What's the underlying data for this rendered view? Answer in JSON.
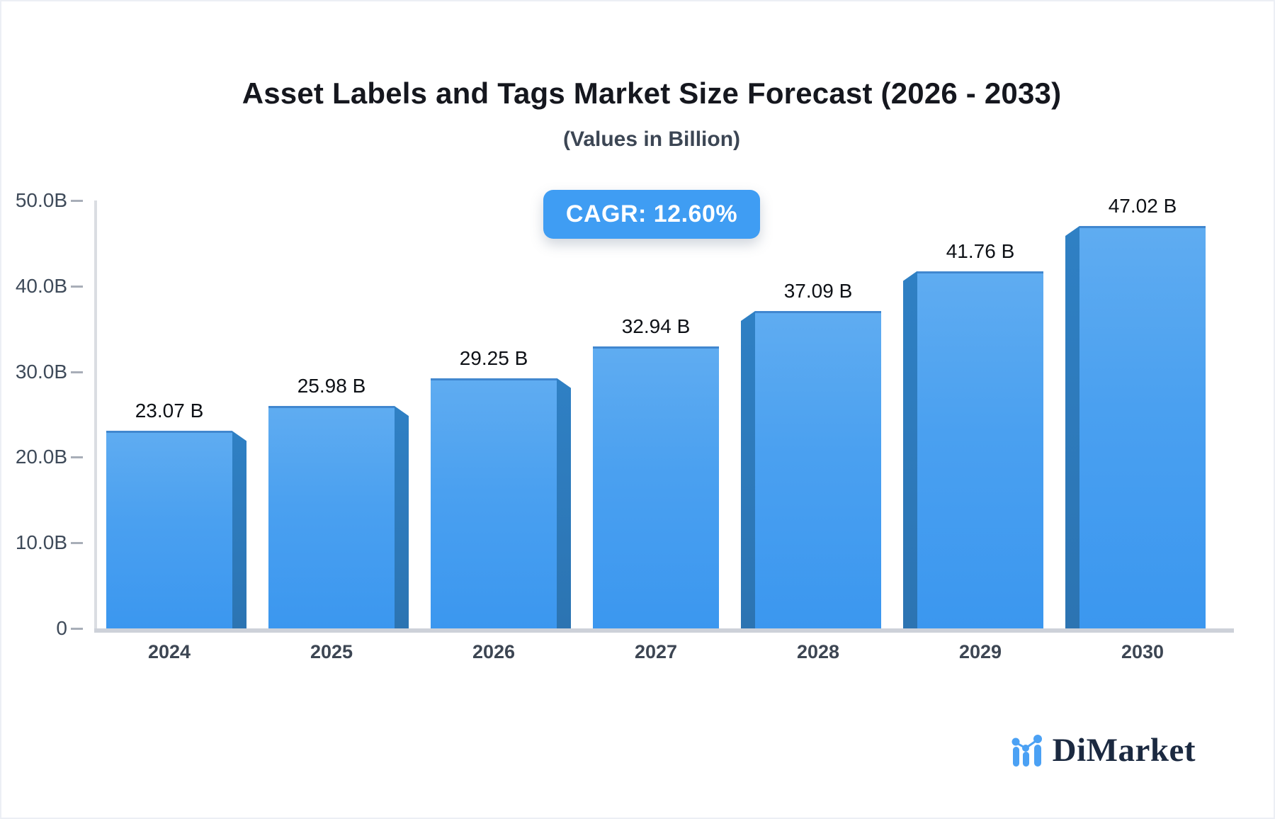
{
  "header": {
    "title": "Asset Labels and Tags Market Size Forecast (2026 - 2033)",
    "subtitle": "(Values in Billion)",
    "cagr_label": "CAGR: 12.60%"
  },
  "chart_data": {
    "type": "bar",
    "title": "Asset Labels and Tags Market Size Forecast (2026 - 2033)",
    "subtitle": "(Values in Billion)",
    "cagr": "12.60%",
    "categories": [
      "2024",
      "2025",
      "2026",
      "2027",
      "2028",
      "2029",
      "2030"
    ],
    "values": [
      23.07,
      25.98,
      29.25,
      32.94,
      37.09,
      41.76,
      47.02
    ],
    "value_labels": [
      "23.07 B",
      "25.98 B",
      "29.25 B",
      "32.94 B",
      "37.09 B",
      "41.76 B",
      "47.02 B"
    ],
    "xlabel": "",
    "ylabel": "",
    "ylim": [
      0,
      50
    ],
    "y_ticks": [
      {
        "label": "50.0B",
        "value": 50
      },
      {
        "label": "40.0B",
        "value": 40
      },
      {
        "label": "30.0B",
        "value": 30
      },
      {
        "label": "20.0B",
        "value": 20
      },
      {
        "label": "10.0B",
        "value": 10
      },
      {
        "label": "0",
        "value": 0
      }
    ],
    "grid": false,
    "legend": "none",
    "style": "3d-beveled-bars",
    "colors": {
      "bar_front_top": "#5facf1",
      "bar_front_bottom": "#3b97ef",
      "bar_side": "#2e7abb",
      "bar_top_edge": "#4187cf",
      "axis_line": "#dadde2",
      "baseline": "#cdd1d9",
      "tick": "#a8aeb8",
      "axis_text": "#3e4a59",
      "value_text": "#0e1116",
      "badge_bg": "#3f9df3",
      "badge_text": "#ffffff"
    }
  },
  "logo": {
    "text": "DiMarket",
    "icon": "mini-bar-chart-icon",
    "icon_color": "#4ba1f4",
    "text_color": "#1b2940"
  }
}
